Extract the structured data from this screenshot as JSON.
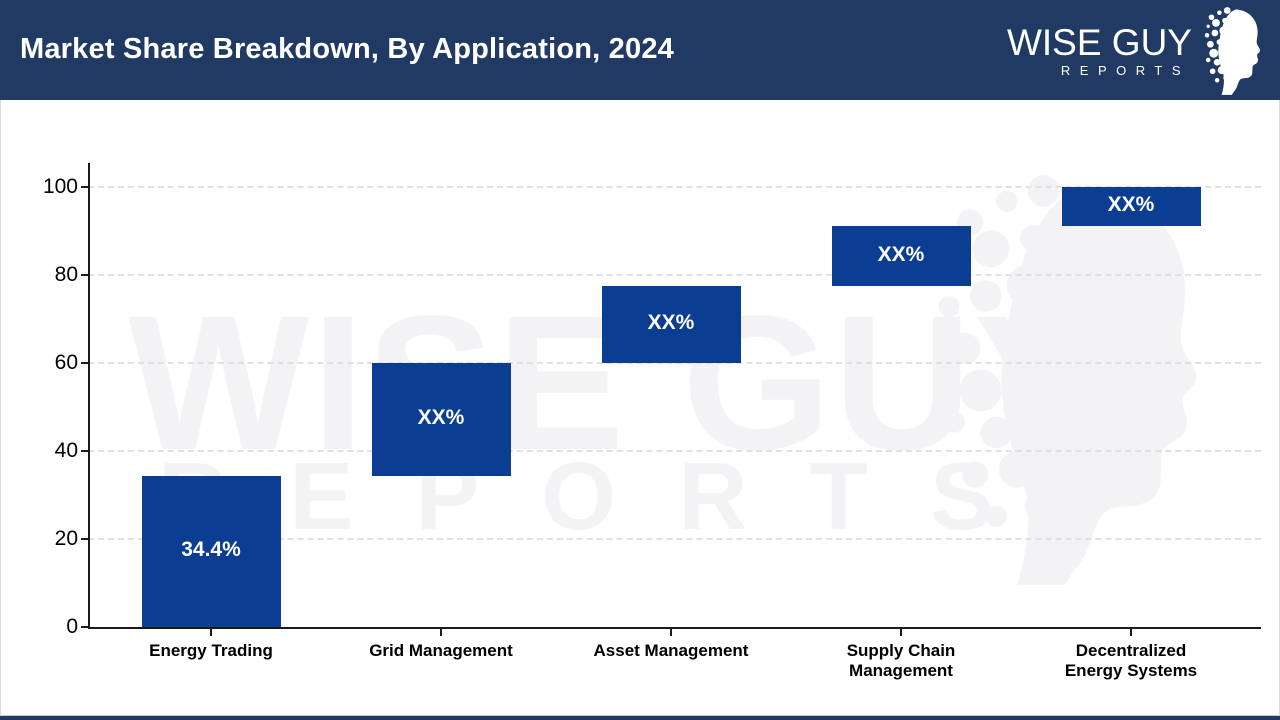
{
  "header": {
    "title": "Market Share Breakdown, By Application, 2024",
    "logo": {
      "line1": "WISE GUY",
      "line2": "REPORTS",
      "head_icon": "dotted-head-profile-icon"
    }
  },
  "watermark": {
    "line1": "WISE GUY",
    "line2": "REPORTS",
    "head_icon": "dotted-head-profile-icon"
  },
  "colors": {
    "header_bg": "#213A64",
    "bar": "#0B3E92",
    "bar_label": "#FFFFFF",
    "grid": "#E0E0E0",
    "axis": "#1A1A1A",
    "watermark": "#F3F3F5"
  },
  "chart_data": {
    "type": "bar",
    "subtype": "waterfall",
    "title": "Market Share Breakdown, By Application, 2024",
    "categories": [
      "Energy Trading",
      "Grid Management",
      "Asset Management",
      "Supply Chain\nManagement",
      "Decentralized\nEnergy Systems"
    ],
    "segments": [
      {
        "category": "Energy Trading",
        "start": 0,
        "end": 34.4,
        "label": "34.4%"
      },
      {
        "category": "Grid Management",
        "start": 34.4,
        "end": 60.1,
        "label": "XX%"
      },
      {
        "category": "Asset Management",
        "start": 60.1,
        "end": 77.6,
        "label": "XX%"
      },
      {
        "category": "Supply Chain Management",
        "start": 77.6,
        "end": 91.2,
        "label": "XX%"
      },
      {
        "category": "Decentralized Energy Systems",
        "start": 91.2,
        "end": 100,
        "label": "XX%"
      }
    ],
    "ylim": [
      0,
      100
    ],
    "yticks": [
      0,
      20,
      40,
      60,
      80,
      100
    ],
    "grid": "horizontal-dashed",
    "legend": "none",
    "xlabel": "",
    "ylabel": ""
  }
}
